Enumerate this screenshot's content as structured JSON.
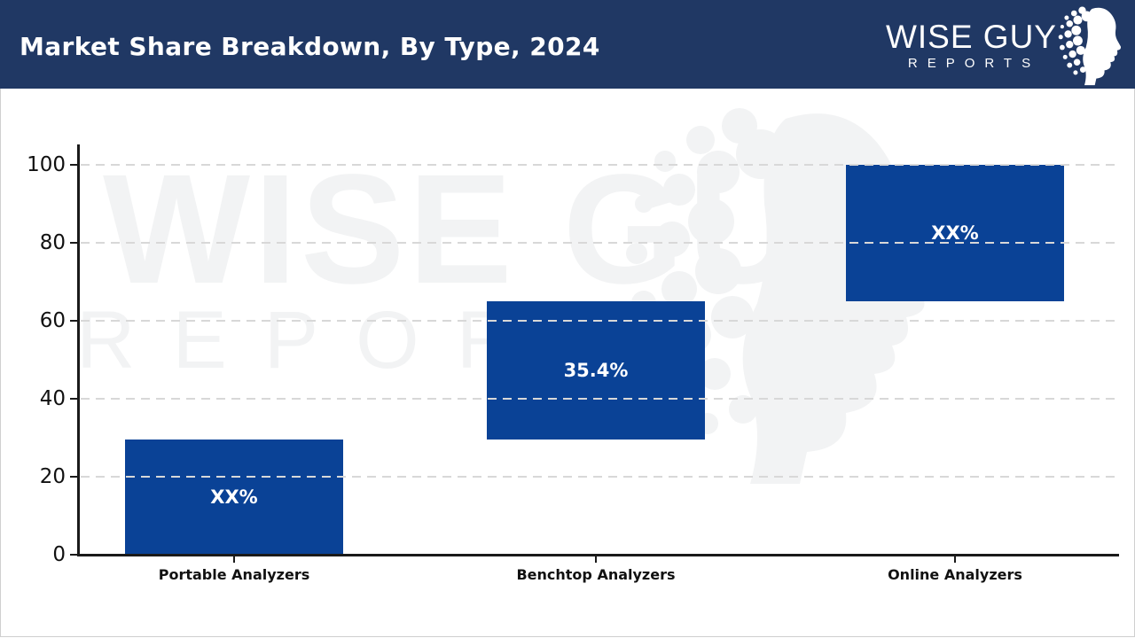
{
  "header": {
    "title": "Market Share Breakdown, By Type, 2024",
    "logo": {
      "line1": "WISE GUY",
      "line2": "REPORTS"
    }
  },
  "watermark": {
    "line1": "WISE GUY",
    "line2": "REPORTS"
  },
  "colors": {
    "header_bg": "#203864",
    "bar_fill": "#0a4296",
    "grid_line": "#d8d8d8",
    "axis": "#1a1a1a",
    "bar_label_text": "#ffffff",
    "watermark": "#f2f3f4"
  },
  "chart_data": {
    "type": "bar",
    "variant": "floating-segment-breakdown",
    "title": "Market Share Breakdown, By Type, 2024",
    "categories": [
      "Portable Analyzers",
      "Benchtop Analyzers",
      "Online Analyzers"
    ],
    "bars": [
      {
        "category": "Portable Analyzers",
        "from": 0,
        "to": 29.5,
        "label": "XX%"
      },
      {
        "category": "Benchtop Analyzers",
        "from": 29.5,
        "to": 64.9,
        "label": "35.4%"
      },
      {
        "category": "Online Analyzers",
        "from": 64.9,
        "to": 100,
        "label": "XX%"
      }
    ],
    "xlabel": "",
    "ylabel": "",
    "ylim": [
      0,
      100
    ],
    "yticks": [
      0,
      20,
      40,
      60,
      80,
      100
    ],
    "grid": "dashed-horizontal",
    "legend": "none"
  }
}
